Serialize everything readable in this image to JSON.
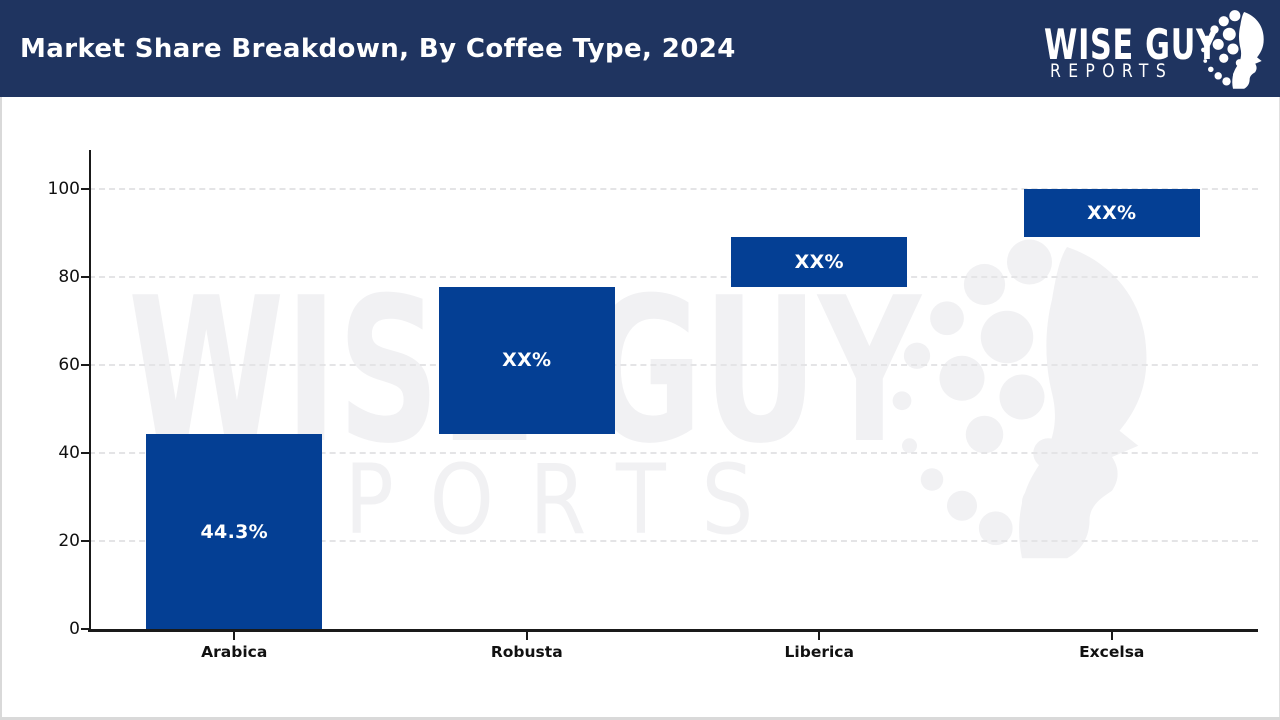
{
  "header": {
    "title": "Market Share Breakdown, By Coffee Type, 2024",
    "bg_color": "#1f3460",
    "logo": {
      "line1": "WISE GUY",
      "line2": "REPORTS"
    }
  },
  "watermark": {
    "line1": "WISE GUY",
    "line2": "REPORTS"
  },
  "chart_data": {
    "type": "bar",
    "subtype": "waterfall",
    "title": "Market Share Breakdown, By Coffee Type, 2024",
    "categories": [
      "Arabica",
      "Robusta",
      "Liberica",
      "Excelsa"
    ],
    "series": [
      {
        "name": "Market share (%)",
        "segments": [
          {
            "category": "Arabica",
            "start": 0,
            "end": 44.3,
            "label": "44.3%"
          },
          {
            "category": "Robusta",
            "start": 44.3,
            "end": 77.8,
            "label": "XX%"
          },
          {
            "category": "Liberica",
            "start": 77.8,
            "end": 89.0,
            "label": "XX%"
          },
          {
            "category": "Excelsa",
            "start": 89.0,
            "end": 100.0,
            "label": "XX%"
          }
        ]
      }
    ],
    "xlabel": "",
    "ylabel": "",
    "ylim": [
      0,
      100
    ],
    "yticks": [
      0,
      20,
      40,
      60,
      80,
      100
    ],
    "grid": "horizontal-dashed",
    "legend": "none",
    "bar_color": "#043f94",
    "bar_label_color": "#ffffff"
  }
}
